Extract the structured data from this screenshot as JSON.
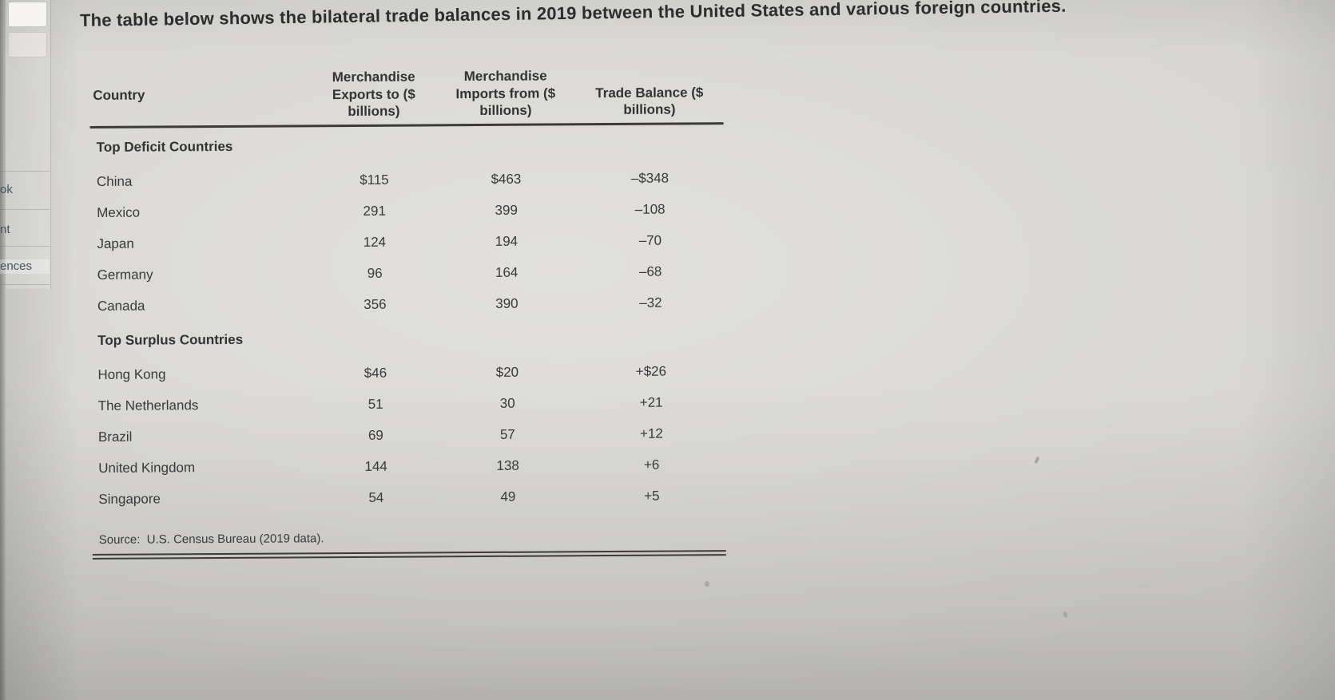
{
  "title": "The table below shows the bilateral trade balances in 2019 between the United States and various foreign countries.",
  "sidebar": {
    "items": [
      {
        "label": "ok"
      },
      {
        "label": "nt"
      },
      {
        "label": "ences"
      }
    ]
  },
  "table": {
    "columns": [
      "Country",
      "Merchandise Exports to ($ billions)",
      "Merchandise Imports from ($ billions)",
      "Trade Balance ($ billions)"
    ],
    "sections": [
      {
        "header": "Top Deficit Countries",
        "rows": [
          {
            "country": "China",
            "exports": "$115",
            "imports": "$463",
            "balance": "–$348"
          },
          {
            "country": "Mexico",
            "exports": "291",
            "imports": "399",
            "balance": "–108"
          },
          {
            "country": "Japan",
            "exports": "124",
            "imports": "194",
            "balance": "–70"
          },
          {
            "country": "Germany",
            "exports": "96",
            "imports": "164",
            "balance": "–68"
          },
          {
            "country": "Canada",
            "exports": "356",
            "imports": "390",
            "balance": "–32"
          }
        ]
      },
      {
        "header": "Top Surplus Countries",
        "rows": [
          {
            "country": "Hong Kong",
            "exports": "$46",
            "imports": "$20",
            "balance": "+$26"
          },
          {
            "country": "The Netherlands",
            "exports": "51",
            "imports": "30",
            "balance": "+21"
          },
          {
            "country": "Brazil",
            "exports": "69",
            "imports": "57",
            "balance": "+12"
          },
          {
            "country": "United Kingdom",
            "exports": "144",
            "imports": "138",
            "balance": "+6"
          },
          {
            "country": "Singapore",
            "exports": "54",
            "imports": "49",
            "balance": "+5"
          }
        ]
      }
    ],
    "source": "Source:  U.S. Census Bureau (2019 data)."
  }
}
